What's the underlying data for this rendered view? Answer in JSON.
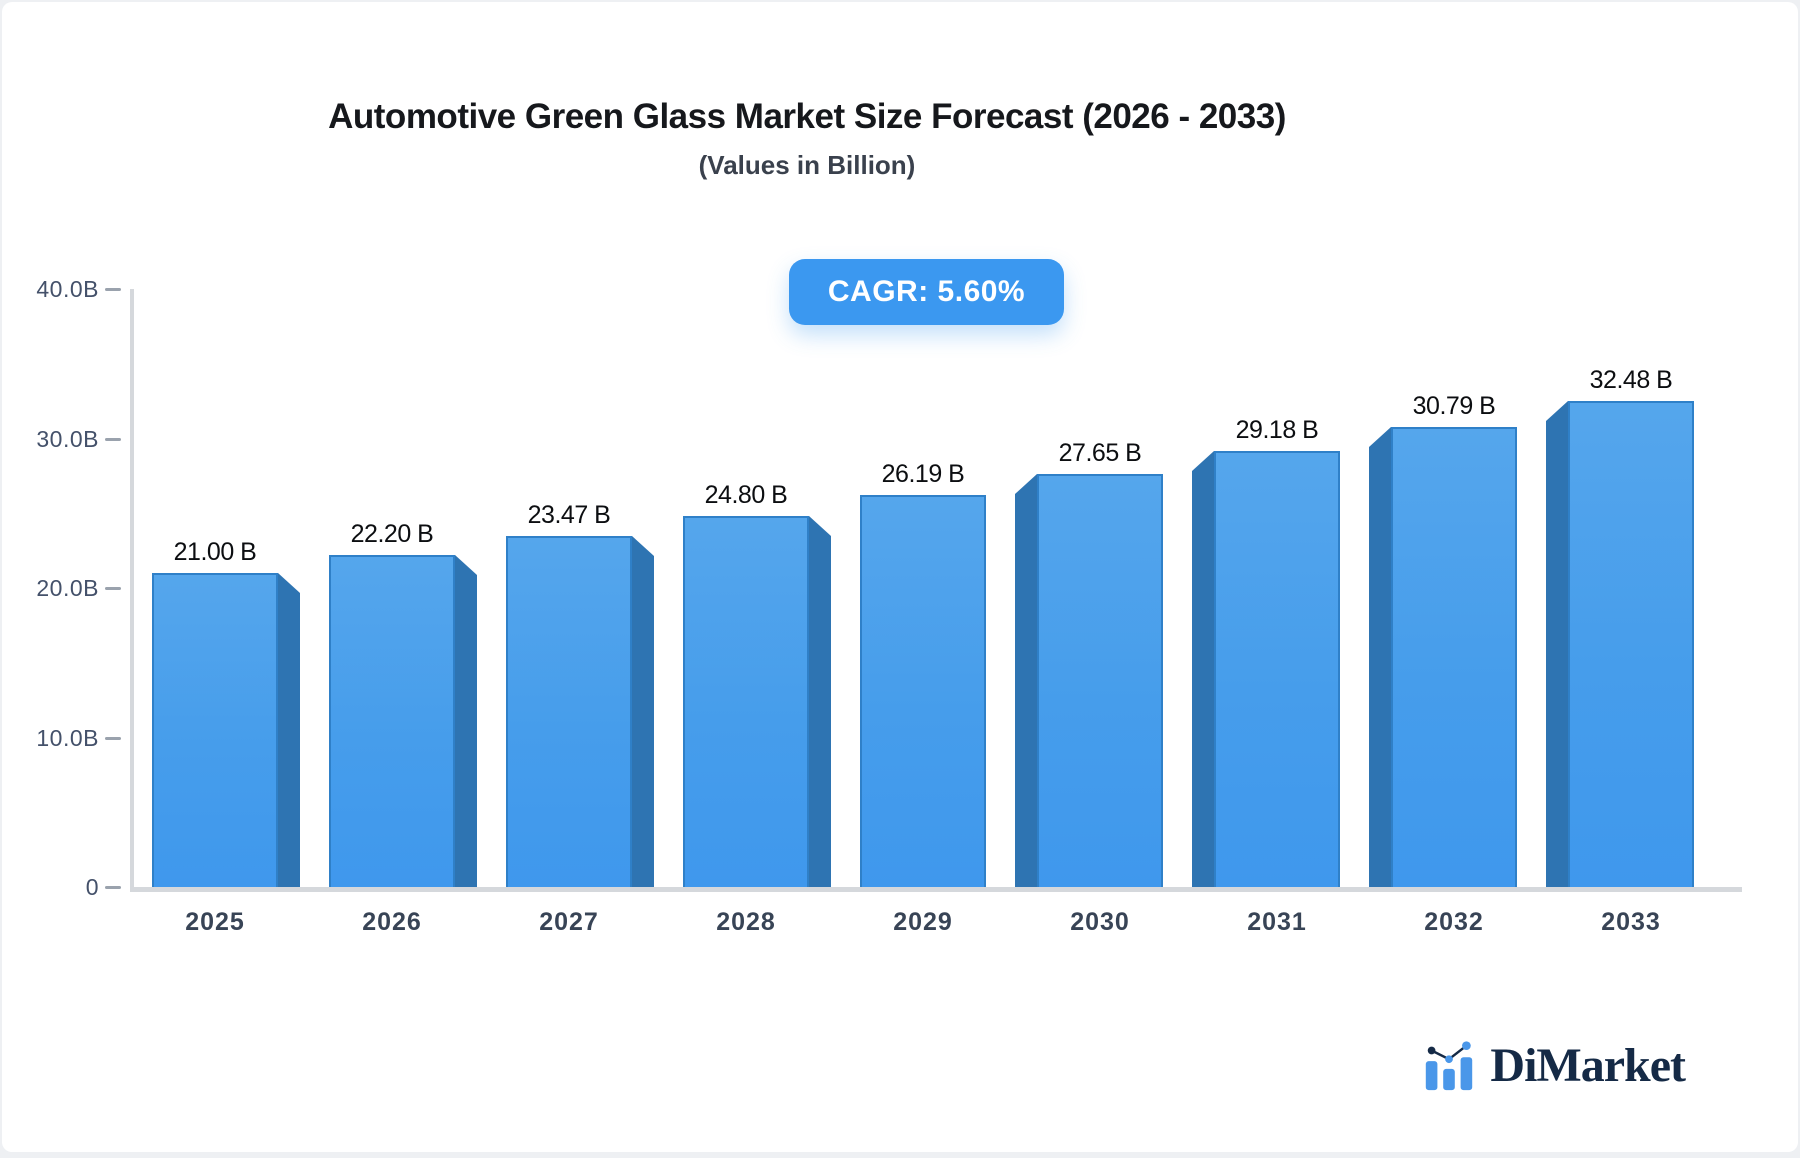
{
  "header": {
    "title": "Automotive Green Glass Market Size Forecast (2026 - 2033)",
    "subtitle": "(Values in Billion)",
    "cagr_badge": "CAGR: 5.60%"
  },
  "chart_data": {
    "type": "bar",
    "title": "Automotive Green Glass Market Size Forecast (2026 - 2033)",
    "subtitle": "(Values in Billion)",
    "unit": "Billion",
    "categories": [
      "2025",
      "2026",
      "2027",
      "2028",
      "2029",
      "2030",
      "2031",
      "2032",
      "2033"
    ],
    "values": [
      21.0,
      22.2,
      23.47,
      24.8,
      26.19,
      27.65,
      29.18,
      30.79,
      32.48
    ],
    "value_labels": [
      "21.00 B",
      "22.20 B",
      "23.47 B",
      "24.80 B",
      "26.19 B",
      "27.65 B",
      "29.18 B",
      "30.79 B",
      "32.48 B"
    ],
    "cagr": "5.60%",
    "xlabel": "",
    "ylabel": "",
    "ylim": [
      0,
      40
    ],
    "grid": false,
    "legend": "none",
    "yticks": [
      {
        "v": 0,
        "label": "0"
      },
      {
        "v": 10,
        "label": "10.0B"
      },
      {
        "v": 20,
        "label": "20.0B"
      },
      {
        "v": 30,
        "label": "30.0B"
      },
      {
        "v": 40,
        "label": "40.0B"
      }
    ],
    "colors": {
      "bar_face_top": "#55a6ec",
      "bar_face_bottom": "#3f98ed",
      "bar_face_border": "#2f80c8",
      "bar_side": "#2e74b2",
      "badge_bg": "#3b98f0",
      "badge_text": "#ffffff",
      "axis": "#d5d8dc",
      "tick": "#9aa2ad",
      "ytick_text": "#44516a",
      "xtick_text": "#384456",
      "value_text": "#0c0e11"
    }
  },
  "branding": {
    "name": "DiMarket",
    "icon": "bar-chart-logo-icon",
    "icon_blue": "#4a97e9",
    "icon_navy": "#152a46"
  }
}
